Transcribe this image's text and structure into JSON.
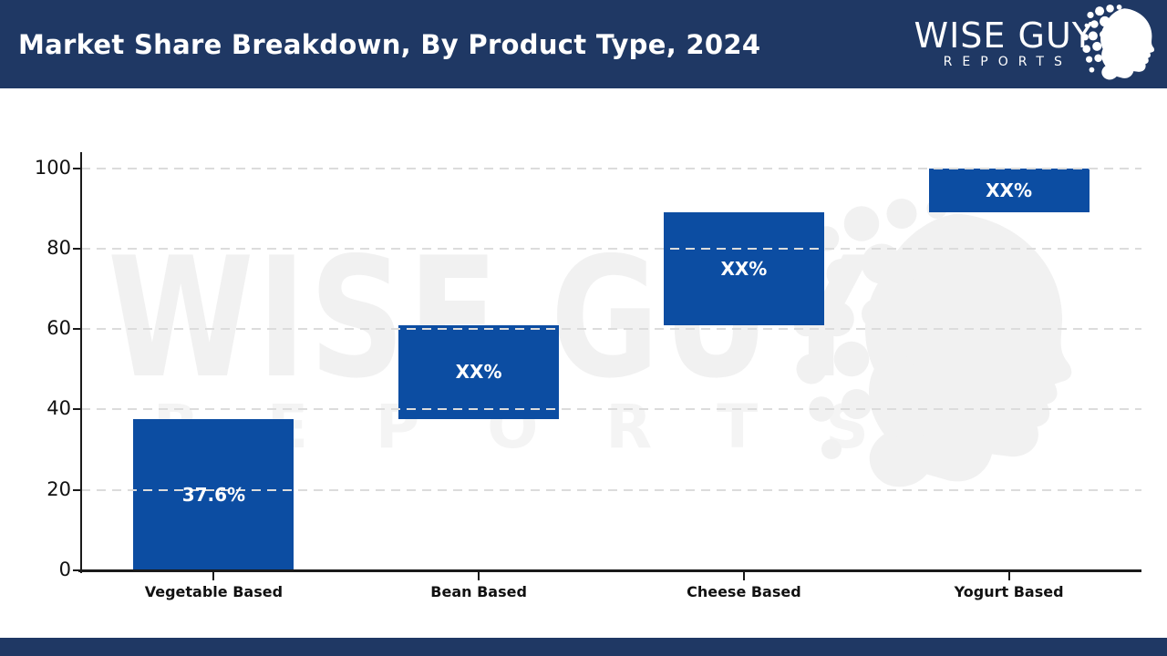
{
  "header": {
    "brand_line1": "WISE GUY",
    "brand_line2": "REPORTS"
  },
  "watermark": {
    "line1": "WISE GUY",
    "line2": "REPORTS"
  },
  "colors": {
    "header_bg": "#1f3864",
    "footer_bg": "#1f3864",
    "bar_blue": "#0c4da2",
    "grid_gray": "#dcdcdc",
    "axis_black": "#1a1a1a",
    "bar_label_white": "#ffffff",
    "watermark_gray": "#f1f1f1"
  },
  "chart_data": {
    "type": "bar",
    "subtype": "floating-waterfall",
    "title": "Market Share Breakdown, By Product Type, 2024",
    "categories": [
      "Vegetable Based",
      "Bean Based",
      "Cheese Based",
      "Yogurt Based"
    ],
    "segments": [
      {
        "category": "Vegetable Based",
        "start": 0,
        "end": 37.6,
        "label": "37.6%"
      },
      {
        "category": "Bean Based",
        "start": 37.6,
        "end": 61,
        "label": "XX%"
      },
      {
        "category": "Cheese Based",
        "start": 61,
        "end": 89,
        "label": "XX%"
      },
      {
        "category": "Yogurt Based",
        "start": 89,
        "end": 100,
        "label": "XX%"
      }
    ],
    "yticks": [
      0,
      20,
      40,
      60,
      80,
      100
    ],
    "ylim": [
      0,
      104
    ],
    "xlabel": "",
    "ylabel": "",
    "grid": "horizontal-dashed-over-bars",
    "legend": "none"
  }
}
